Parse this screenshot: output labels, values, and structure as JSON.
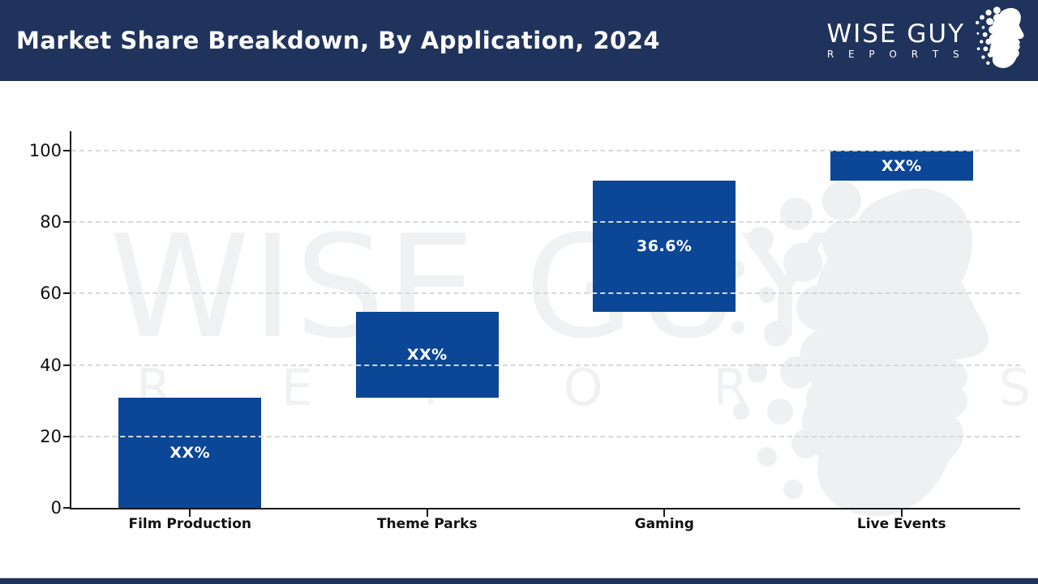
{
  "header": {
    "title": "Market Share Breakdown, By Application, 2024",
    "logo_line1": "WISE GUY",
    "logo_line2": "R E P O R T S"
  },
  "watermark": {
    "line1": "WISE GUY",
    "line2": "R E P O R T S"
  },
  "colors": {
    "header_bg": "#20335c",
    "footer_bg": "#20335c",
    "bar": "#0b4697",
    "grid": "#d8d8d8",
    "axis": "#1a1a1a",
    "watermark": "#f0f1f3",
    "bar_label": "#ffffff"
  },
  "chart_data": {
    "type": "bar",
    "subtype": "floating-waterfall",
    "title": "Market Share Breakdown, By Application, 2024",
    "categories": [
      "Film Production",
      "Theme Parks",
      "Gaming",
      "Live Events"
    ],
    "series": [
      {
        "name": "Market Share (%)",
        "segments": [
          {
            "category": "Film Production",
            "from": 0,
            "to": 30.8
          },
          {
            "category": "Theme Parks",
            "from": 30.8,
            "to": 54.9
          },
          {
            "category": "Gaming",
            "from": 54.9,
            "to": 91.5
          },
          {
            "category": "Live Events",
            "from": 91.5,
            "to": 100
          }
        ]
      }
    ],
    "bar_labels": [
      "XX%",
      "XX%",
      "36.6%",
      "XX%"
    ],
    "xlabel": "",
    "ylabel": "",
    "ylim": [
      0,
      105
    ],
    "yticks": [
      0,
      20,
      40,
      60,
      80,
      100
    ],
    "grid": "horizontal-dashed-above-bars",
    "legend": "none"
  }
}
